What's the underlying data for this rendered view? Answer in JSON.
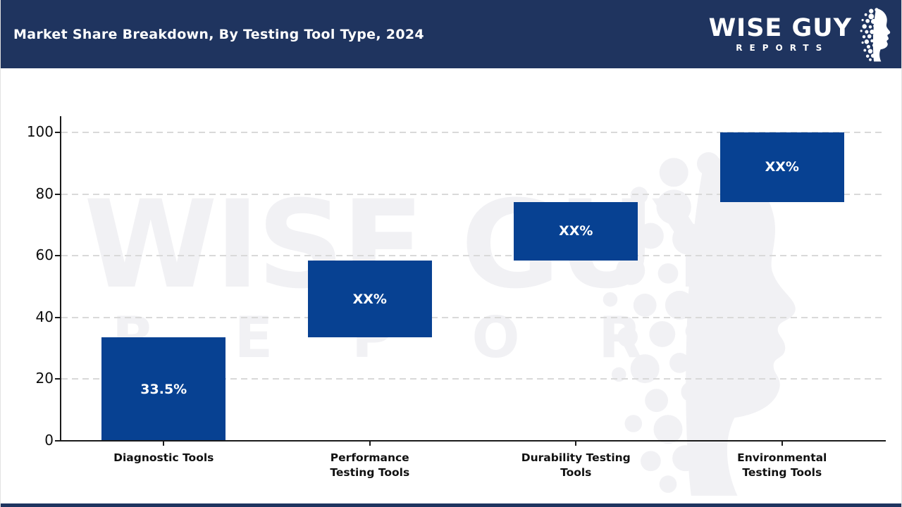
{
  "header": {
    "title": "Market Share Breakdown, By Testing Tool Type, 2024",
    "logo": {
      "name": "Wise Guy Reports",
      "line1": "WISE GUY",
      "line2": "REPORTS"
    }
  },
  "watermark": {
    "line1": "WISE GUY",
    "line2": "R E P O R T S"
  },
  "colors": {
    "header_bg": "#1f345f",
    "bar": "#074192",
    "bar_label": "#ffffff",
    "grid": "#d9d9d9",
    "axis": "#1a1a1a",
    "tick_label": "#0d0d0d",
    "watermark": "#f1f1f4"
  },
  "chart_data": {
    "type": "bar",
    "variant": "waterfall",
    "title": "Market Share Breakdown, By Testing Tool Type, 2024",
    "categories": [
      "Diagnostic Tools",
      "Performance\nTesting Tools",
      "Durability Testing\nTools",
      "Environmental\nTesting Tools"
    ],
    "segments": [
      {
        "category": "Diagnostic Tools",
        "start": 0,
        "end": 33.5,
        "label": "33.5%"
      },
      {
        "category": "Performance Testing Tools",
        "start": 33.5,
        "end": 58.5,
        "label": "XX%"
      },
      {
        "category": "Durability Testing Tools",
        "start": 58.5,
        "end": 77.5,
        "label": "XX%"
      },
      {
        "category": "Environmental Testing Tools",
        "start": 77.5,
        "end": 100,
        "label": "XX%"
      }
    ],
    "yticks": [
      0,
      20,
      40,
      60,
      80,
      100
    ],
    "ylim": [
      0,
      105
    ],
    "xlabel": "",
    "ylabel": "",
    "grid": "horizontal-dashed",
    "legend": "none"
  }
}
